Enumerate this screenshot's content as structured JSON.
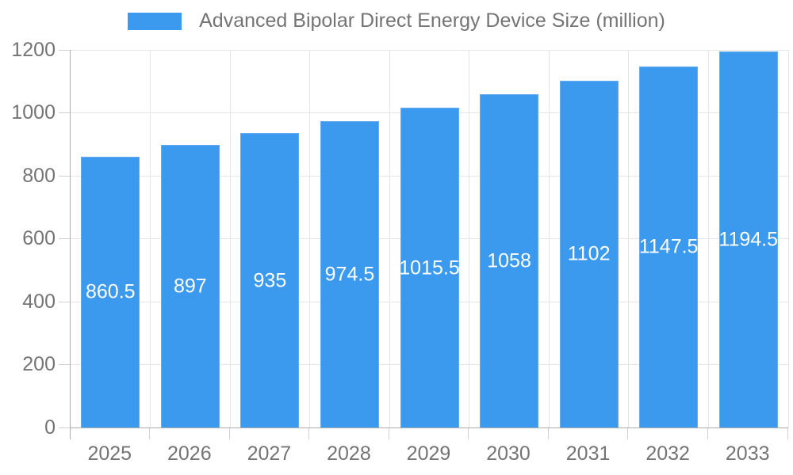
{
  "legend": {
    "label": "Advanced Bipolar Direct Energy Device Size (million)"
  },
  "chart_data": {
    "type": "bar",
    "title": "",
    "xlabel": "",
    "ylabel": "",
    "categories": [
      "2025",
      "2026",
      "2027",
      "2028",
      "2029",
      "2030",
      "2031",
      "2032",
      "2033"
    ],
    "series": [
      {
        "name": "Advanced Bipolar Direct Energy Device Size (million)",
        "values": [
          860.5,
          897,
          935,
          974.5,
          1015.5,
          1058,
          1102,
          1147.5,
          1194.5
        ]
      }
    ],
    "ylim": [
      0,
      1200
    ],
    "y_ticks": [
      0,
      200,
      400,
      600,
      800,
      1000,
      1200
    ],
    "grid": true,
    "legend_position": "top",
    "bar_labels_shown": true,
    "colors": {
      "bar": "#3B99EE",
      "bar_border": "#65ACF0",
      "grid": "#E5E5E5",
      "axis": "#ACACAC",
      "tick": "#D0D0D0",
      "text": "#747474",
      "bar_label": "#FFFFFF"
    }
  }
}
